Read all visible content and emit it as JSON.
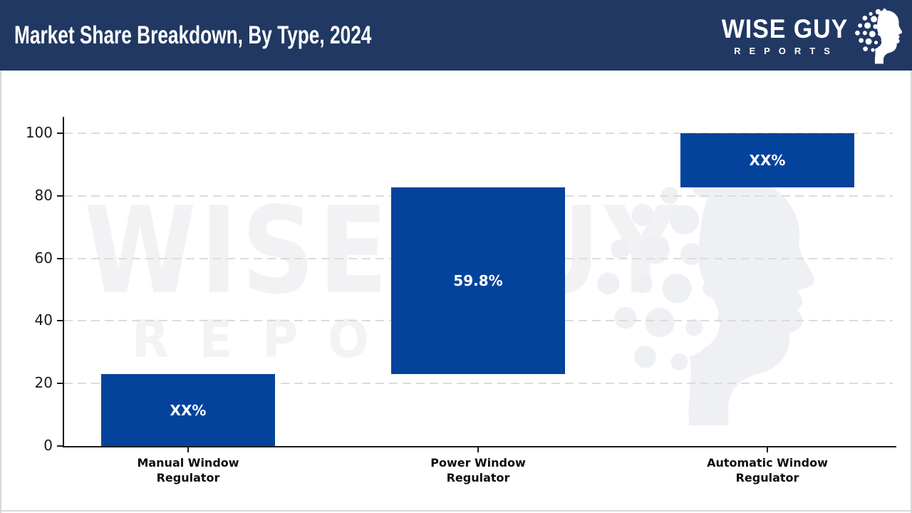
{
  "header": {
    "title": "Market Share Breakdown, By Type, 2024",
    "logo_line1": "WISE GUY",
    "logo_line2": "REPORTS",
    "logo_icon": "wiseguy-head-icon",
    "bg_color": "#213863"
  },
  "watermark": {
    "line1": "WISE GUY",
    "line2": "REPORTS"
  },
  "chart_data": {
    "type": "bar",
    "subtype": "waterfall",
    "title": "Market Share Breakdown, By Type, 2024",
    "categories": [
      {
        "line1": "Manual Window",
        "line2": "Regulator"
      },
      {
        "line1": "Power Window",
        "line2": "Regulator"
      },
      {
        "line1": "Automatic Window",
        "line2": "Regulator"
      }
    ],
    "bars": [
      {
        "label": "XX%",
        "start": 0,
        "end": 23
      },
      {
        "label": "59.8%",
        "start": 23,
        "end": 82.8
      },
      {
        "label": "XX%",
        "start": 82.8,
        "end": 100
      }
    ],
    "bar_color": "#04439c",
    "ylim": [
      0,
      100
    ],
    "yticks": [
      0,
      20,
      40,
      60,
      80,
      100
    ],
    "grid": "horizontal-dashed",
    "legend": "none",
    "xlabel": "",
    "ylabel": ""
  },
  "colors": {
    "header_bg": "#213863",
    "bar_blue": "#04439c",
    "axis": "#1a1a1a",
    "gridline": "#dcdcdc",
    "watermark": "#f2f2f4",
    "frame_border": "#d9d9d9"
  }
}
